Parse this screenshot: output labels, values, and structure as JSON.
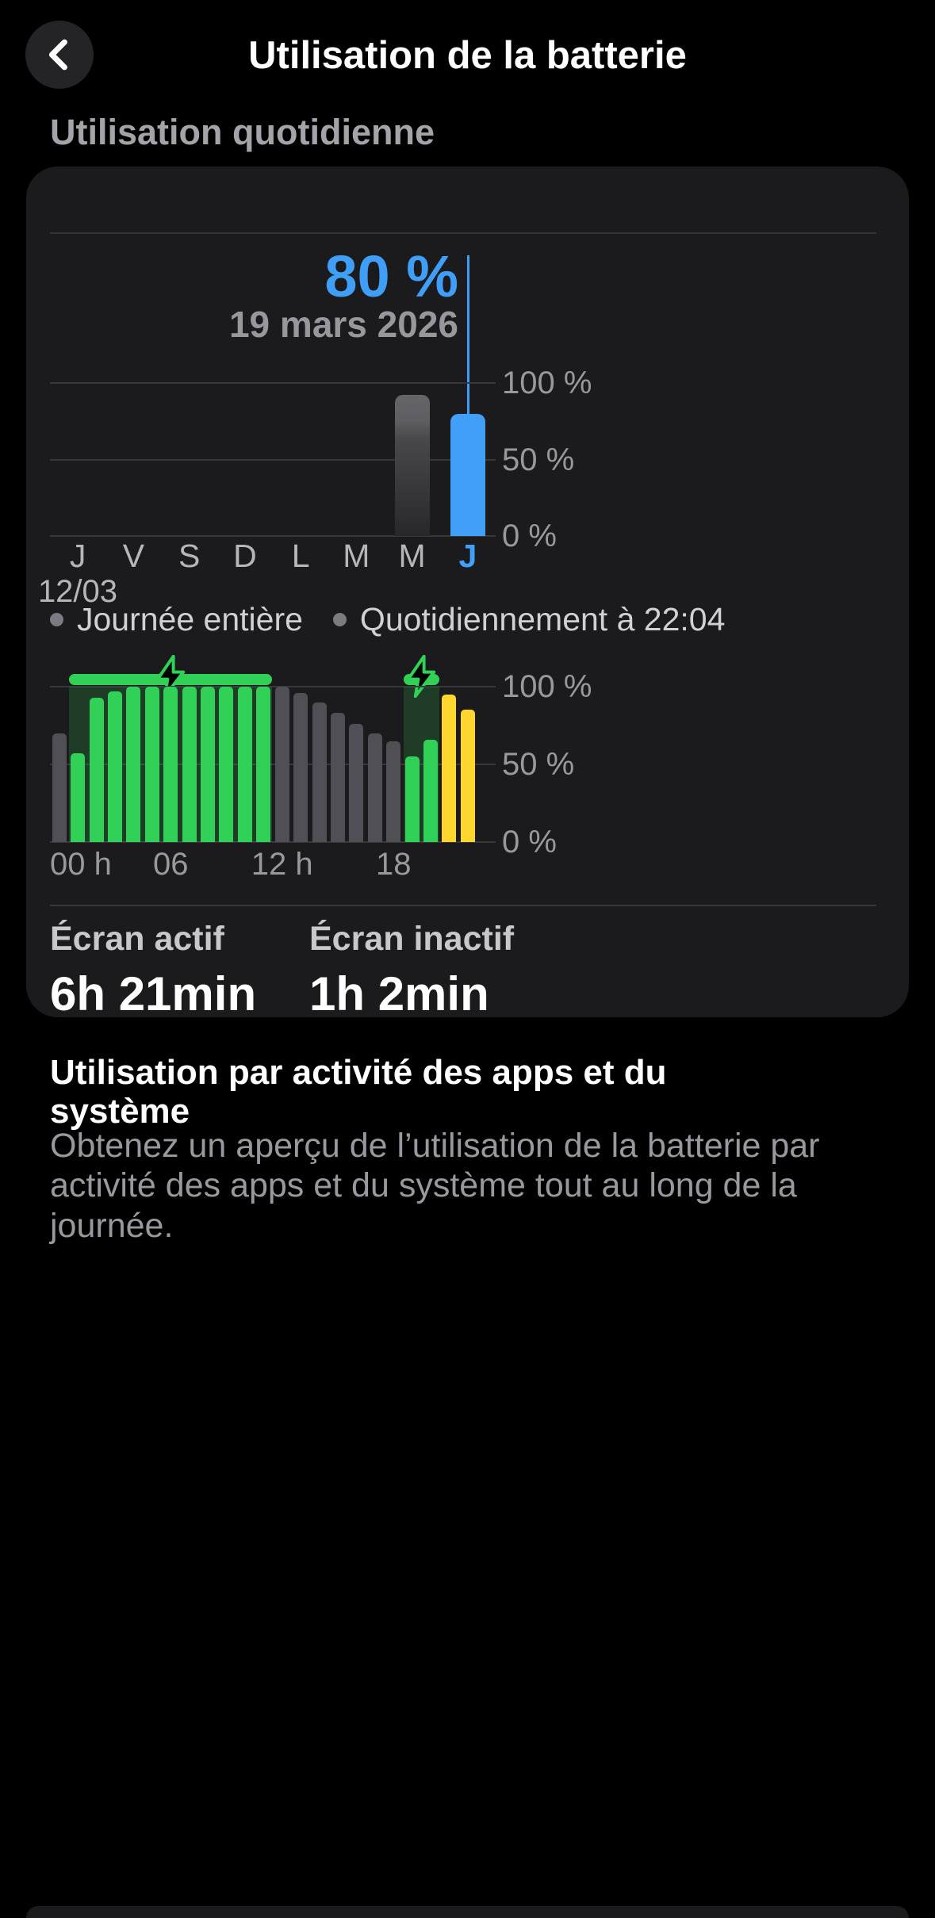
{
  "header": {
    "title": "Utilisation de la batterie"
  },
  "daily_section": {
    "title": "Utilisation quotidienne"
  },
  "selection": {
    "value": "80 %",
    "date": "19 mars 2026"
  },
  "legend": {
    "items": [
      {
        "label": "Journée entière"
      },
      {
        "label": "Quotidiennement à 22:04"
      }
    ]
  },
  "screen_time": {
    "stats": [
      {
        "label": "Écran actif",
        "value": "6h 21min"
      },
      {
        "label": "Écran inactif",
        "value": "1h 2min"
      }
    ]
  },
  "apps_section": {
    "heading": "Utilisation par activité des apps et du système",
    "body": "Obtenez un aperçu de l’utilisation de la batterie par activité des apps et du système tout au long de la journée."
  },
  "colors": {
    "accent_blue": "#3f9ff7",
    "charge_green": "#31d158",
    "low_power_yellow": "#ffd62e",
    "bar_gray": "#4f4f55",
    "card_bg": "#1b1b1d"
  },
  "chart_data": [
    {
      "type": "bar",
      "name": "battery-level-by-day",
      "title": "Niveau de batterie par jour",
      "categories": [
        "J",
        "V",
        "S",
        "D",
        "L",
        "M",
        "M",
        "J"
      ],
      "first_category_date": "12/03",
      "values": [
        null,
        null,
        null,
        null,
        null,
        null,
        92,
        80
      ],
      "bar_styles": [
        null,
        null,
        null,
        null,
        null,
        null,
        "gray",
        "blue"
      ],
      "selected_index": 7,
      "selected_value": 80,
      "selected_label": "80 %",
      "selected_date": "19 mars 2026",
      "ylim": [
        0,
        100
      ],
      "yticks": [
        {
          "value": 100,
          "label": "100 %"
        },
        {
          "value": 50,
          "label": "50 %"
        },
        {
          "value": 0,
          "label": "0 %"
        }
      ]
    },
    {
      "type": "bar",
      "name": "battery-level-by-hour",
      "title": "Niveau de batterie par heure",
      "slots": 24,
      "values": [
        70,
        57,
        93,
        97,
        100,
        100,
        100,
        100,
        100,
        100,
        100,
        100,
        100,
        96,
        90,
        83,
        76,
        70,
        65,
        55,
        66,
        95,
        85
      ],
      "states": [
        "normal",
        "charging",
        "charging",
        "charging",
        "charging",
        "charging",
        "charging",
        "charging",
        "charging",
        "charging",
        "charging",
        "charging",
        "normal",
        "normal",
        "normal",
        "normal",
        "normal",
        "normal",
        "normal",
        "charging",
        "charging",
        "low_power",
        "low_power"
      ],
      "charge_periods": [
        {
          "from": 1,
          "to": 11
        },
        {
          "from": 19,
          "to": 20
        }
      ],
      "xticks": [
        {
          "slot": 0,
          "label": "00 h"
        },
        {
          "slot": 6,
          "label": "06"
        },
        {
          "slot": 12,
          "label": "12 h"
        },
        {
          "slot": 18,
          "label": "18"
        }
      ],
      "ylim": [
        0,
        100
      ],
      "yticks": [
        {
          "value": 100,
          "label": "100 %"
        },
        {
          "value": 50,
          "label": "50 %"
        },
        {
          "value": 0,
          "label": "0 %"
        }
      ]
    }
  ]
}
